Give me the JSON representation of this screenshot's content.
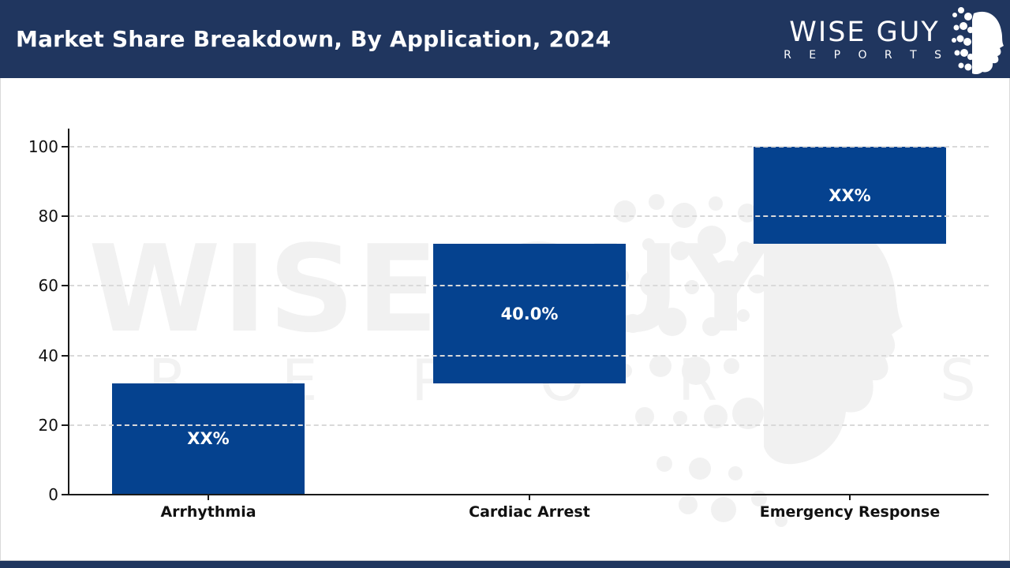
{
  "header": {
    "title": "Market Share Breakdown, By Application, 2024",
    "logo_line1": "WISE GUY",
    "logo_line2": "R E P O R T S"
  },
  "watermark": {
    "line1": "WISE GUY",
    "line2": "R E P O R T S"
  },
  "chart_data": {
    "type": "bar",
    "subtype": "floating-waterfall",
    "title": "Market Share Breakdown, By Application, 2024",
    "categories": [
      "Arrhythmia",
      "Cardiac Arrest",
      "Emergency Response"
    ],
    "segments": [
      {
        "category": "Arrhythmia",
        "start": 0,
        "end": 32,
        "label": "XX%"
      },
      {
        "category": "Cardiac Arrest",
        "start": 32,
        "end": 72,
        "label": "40.0%"
      },
      {
        "category": "Emergency Response",
        "start": 72,
        "end": 100,
        "label": "XX%"
      }
    ],
    "y_ticks": [
      0,
      20,
      40,
      60,
      80,
      100
    ],
    "ylim": [
      0,
      105
    ],
    "xlabel": "",
    "ylabel": "",
    "grid": "horizontal-dashed-over-bars",
    "legend": "none",
    "colors": {
      "bar": "#05428f",
      "header_bg": "#20365f",
      "footer_bg": "#20365f",
      "grid": "#d9d9d9",
      "axis": "#1a1a1a",
      "bar_label": "#ffffff",
      "watermark": "#f1f1f1"
    }
  }
}
